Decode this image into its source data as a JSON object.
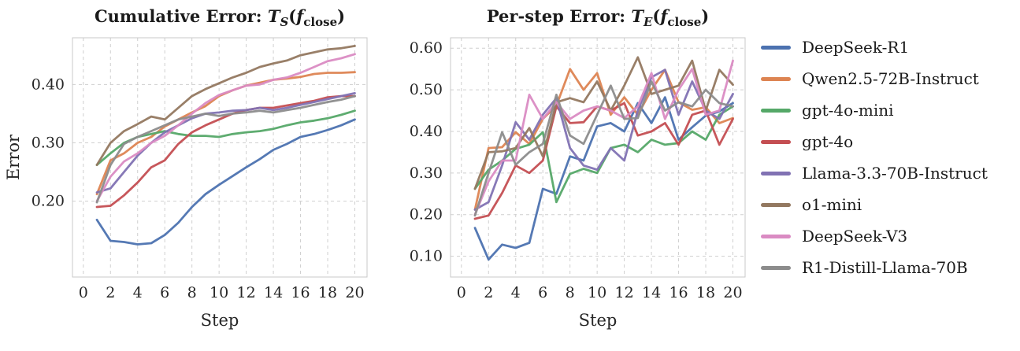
{
  "figure": {
    "background": "#ffffff",
    "grid_color": "#cfcfcf",
    "spine_color": "#c8c8c8",
    "legend": {
      "items": [
        {
          "label": "DeepSeek-R1",
          "color": "#4c72b0"
        },
        {
          "label": "Qwen2.5-72B-Instruct",
          "color": "#dd8452"
        },
        {
          "label": "gpt-4o-mini",
          "color": "#55a868"
        },
        {
          "label": "gpt-4o",
          "color": "#c44e52"
        },
        {
          "label": "Llama-3.3-70B-Instruct",
          "color": "#8172b3"
        },
        {
          "label": "o1-mini",
          "color": "#937860"
        },
        {
          "label": "DeepSeek-V3",
          "color": "#da8bc3"
        },
        {
          "label": "R1-Distill-Llama-70B",
          "color": "#8c8c8c"
        }
      ]
    }
  },
  "chart_data": [
    {
      "type": "line",
      "title": "Cumulative Error: T_S(f_close)",
      "title_parts": {
        "prefix": "Cumulative Error: ",
        "var": "T",
        "var_sub": "S",
        "open": "(",
        "fname": "f",
        "fname_sub": "close",
        "close": ")"
      },
      "xlabel": "Step",
      "ylabel": "Error",
      "x": [
        1,
        2,
        3,
        4,
        5,
        6,
        7,
        8,
        9,
        10,
        11,
        12,
        13,
        14,
        15,
        16,
        17,
        18,
        19,
        20
      ],
      "xticks": [
        0,
        2,
        4,
        6,
        8,
        10,
        12,
        14,
        16,
        18,
        20
      ],
      "xtick_labels": [
        "0",
        "2",
        "4",
        "6",
        "8",
        "10",
        "12",
        "14",
        "16",
        "18",
        "20"
      ],
      "xlim": [
        -0.8,
        20.9
      ],
      "ylim": [
        0.07,
        0.48
      ],
      "yticks": [
        0.2,
        0.3,
        0.4
      ],
      "ytick_labels": [
        "0.20",
        "0.30",
        "0.40"
      ],
      "grid": true,
      "legend_position": "outside-right",
      "series": [
        {
          "name": "DeepSeek-R1",
          "color": "#4c72b0",
          "values": [
            0.168,
            0.132,
            0.13,
            0.126,
            0.128,
            0.142,
            0.163,
            0.19,
            0.212,
            0.228,
            0.243,
            0.258,
            0.272,
            0.288,
            0.298,
            0.31,
            0.315,
            0.322,
            0.33,
            0.34
          ]
        },
        {
          "name": "Qwen2.5-72B-Instruct",
          "color": "#dd8452",
          "values": [
            0.212,
            0.27,
            0.282,
            0.3,
            0.31,
            0.328,
            0.34,
            0.352,
            0.363,
            0.38,
            0.39,
            0.398,
            0.403,
            0.408,
            0.41,
            0.413,
            0.418,
            0.42,
            0.42,
            0.421
          ]
        },
        {
          "name": "gpt-4o-mini",
          "color": "#55a868",
          "values": [
            0.262,
            0.282,
            0.3,
            0.31,
            0.315,
            0.32,
            0.315,
            0.312,
            0.312,
            0.31,
            0.315,
            0.318,
            0.32,
            0.324,
            0.33,
            0.335,
            0.338,
            0.342,
            0.348,
            0.355
          ]
        },
        {
          "name": "gpt-4o",
          "color": "#c44e52",
          "values": [
            0.19,
            0.192,
            0.21,
            0.232,
            0.258,
            0.27,
            0.298,
            0.318,
            0.33,
            0.34,
            0.35,
            0.356,
            0.36,
            0.36,
            0.364,
            0.368,
            0.372,
            0.378,
            0.38,
            0.38
          ]
        },
        {
          "name": "Llama-3.3-70B-Instruct",
          "color": "#8172b3",
          "values": [
            0.215,
            0.222,
            0.25,
            0.278,
            0.3,
            0.318,
            0.33,
            0.342,
            0.35,
            0.352,
            0.355,
            0.356,
            0.36,
            0.356,
            0.36,
            0.365,
            0.37,
            0.375,
            0.38,
            0.385
          ]
        },
        {
          "name": "o1-mini",
          "color": "#937860",
          "values": [
            0.262,
            0.3,
            0.32,
            0.332,
            0.345,
            0.34,
            0.36,
            0.38,
            0.392,
            0.402,
            0.412,
            0.42,
            0.43,
            0.436,
            0.441,
            0.45,
            0.455,
            0.46,
            0.462,
            0.466
          ]
        },
        {
          "name": "DeepSeek-V3",
          "color": "#da8bc3",
          "values": [
            0.2,
            0.242,
            0.268,
            0.282,
            0.3,
            0.312,
            0.33,
            0.35,
            0.368,
            0.382,
            0.39,
            0.398,
            0.4,
            0.408,
            0.412,
            0.42,
            0.43,
            0.44,
            0.445,
            0.452
          ]
        },
        {
          "name": "R1-Distill-Llama-70B",
          "color": "#8c8c8c",
          "values": [
            0.198,
            0.262,
            0.298,
            0.31,
            0.32,
            0.33,
            0.34,
            0.345,
            0.35,
            0.346,
            0.35,
            0.352,
            0.355,
            0.352,
            0.356,
            0.36,
            0.365,
            0.37,
            0.374,
            0.38
          ]
        }
      ]
    },
    {
      "type": "line",
      "title": "Per-step Error: T_E(f_close)",
      "title_parts": {
        "prefix": "Per-step Error: ",
        "var": "T",
        "var_sub": "E",
        "open": "(",
        "fname": "f",
        "fname_sub": "close",
        "close": ")"
      },
      "xlabel": "Step",
      "ylabel": "",
      "x": [
        1,
        2,
        3,
        4,
        5,
        6,
        7,
        8,
        9,
        10,
        11,
        12,
        13,
        14,
        15,
        16,
        17,
        18,
        19,
        20
      ],
      "xticks": [
        0,
        2,
        4,
        6,
        8,
        10,
        12,
        14,
        16,
        18,
        20
      ],
      "xtick_labels": [
        "0",
        "2",
        "4",
        "6",
        "8",
        "10",
        "12",
        "14",
        "16",
        "18",
        "20"
      ],
      "xlim": [
        -0.8,
        20.9
      ],
      "ylim": [
        0.05,
        0.625
      ],
      "yticks": [
        0.1,
        0.2,
        0.3,
        0.4,
        0.5,
        0.6
      ],
      "ytick_labels": [
        "0.10",
        "0.20",
        "0.30",
        "0.40",
        "0.50",
        "0.60"
      ],
      "grid": true,
      "legend_position": "outside-right",
      "series": [
        {
          "name": "DeepSeek-R1",
          "color": "#4c72b0",
          "values": [
            0.168,
            0.092,
            0.128,
            0.12,
            0.132,
            0.262,
            0.25,
            0.34,
            0.33,
            0.412,
            0.42,
            0.4,
            0.468,
            0.42,
            0.482,
            0.38,
            0.41,
            0.438,
            0.448,
            0.468
          ]
        },
        {
          "name": "Qwen2.5-72B-Instruct",
          "color": "#dd8452",
          "values": [
            0.212,
            0.36,
            0.362,
            0.398,
            0.37,
            0.43,
            0.462,
            0.55,
            0.5,
            0.54,
            0.44,
            0.482,
            0.44,
            0.5,
            0.548,
            0.47,
            0.452,
            0.458,
            0.42,
            0.432
          ]
        },
        {
          "name": "gpt-4o-mini",
          "color": "#55a868",
          "values": [
            0.262,
            0.308,
            0.33,
            0.358,
            0.368,
            0.398,
            0.23,
            0.298,
            0.31,
            0.3,
            0.36,
            0.368,
            0.35,
            0.38,
            0.368,
            0.372,
            0.4,
            0.38,
            0.44,
            0.46
          ]
        },
        {
          "name": "gpt-4o",
          "color": "#c44e52",
          "values": [
            0.19,
            0.198,
            0.252,
            0.318,
            0.3,
            0.33,
            0.46,
            0.42,
            0.422,
            0.46,
            0.45,
            0.468,
            0.39,
            0.4,
            0.42,
            0.368,
            0.44,
            0.45,
            0.368,
            0.43
          ]
        },
        {
          "name": "Llama-3.3-70B-Instruct",
          "color": "#8172b3",
          "values": [
            0.212,
            0.23,
            0.318,
            0.422,
            0.38,
            0.44,
            0.48,
            0.36,
            0.318,
            0.308,
            0.36,
            0.33,
            0.45,
            0.53,
            0.548,
            0.44,
            0.52,
            0.45,
            0.43,
            0.49
          ]
        },
        {
          "name": "o1-mini",
          "color": "#937860",
          "values": [
            0.262,
            0.35,
            0.352,
            0.36,
            0.408,
            0.34,
            0.47,
            0.48,
            0.47,
            0.52,
            0.45,
            0.51,
            0.578,
            0.49,
            0.5,
            0.51,
            0.57,
            0.45,
            0.548,
            0.512
          ]
        },
        {
          "name": "DeepSeek-V3",
          "color": "#da8bc3",
          "values": [
            0.2,
            0.28,
            0.33,
            0.33,
            0.488,
            0.43,
            0.47,
            0.43,
            0.45,
            0.46,
            0.45,
            0.432,
            0.46,
            0.54,
            0.43,
            0.5,
            0.55,
            0.44,
            0.45,
            0.57
          ]
        },
        {
          "name": "R1-Distill-Llama-70B",
          "color": "#8c8c8c",
          "values": [
            0.198,
            0.3,
            0.398,
            0.32,
            0.35,
            0.37,
            0.488,
            0.39,
            0.37,
            0.44,
            0.51,
            0.43,
            0.432,
            0.52,
            0.45,
            0.47,
            0.46,
            0.5,
            0.468,
            0.46
          ]
        }
      ]
    }
  ]
}
